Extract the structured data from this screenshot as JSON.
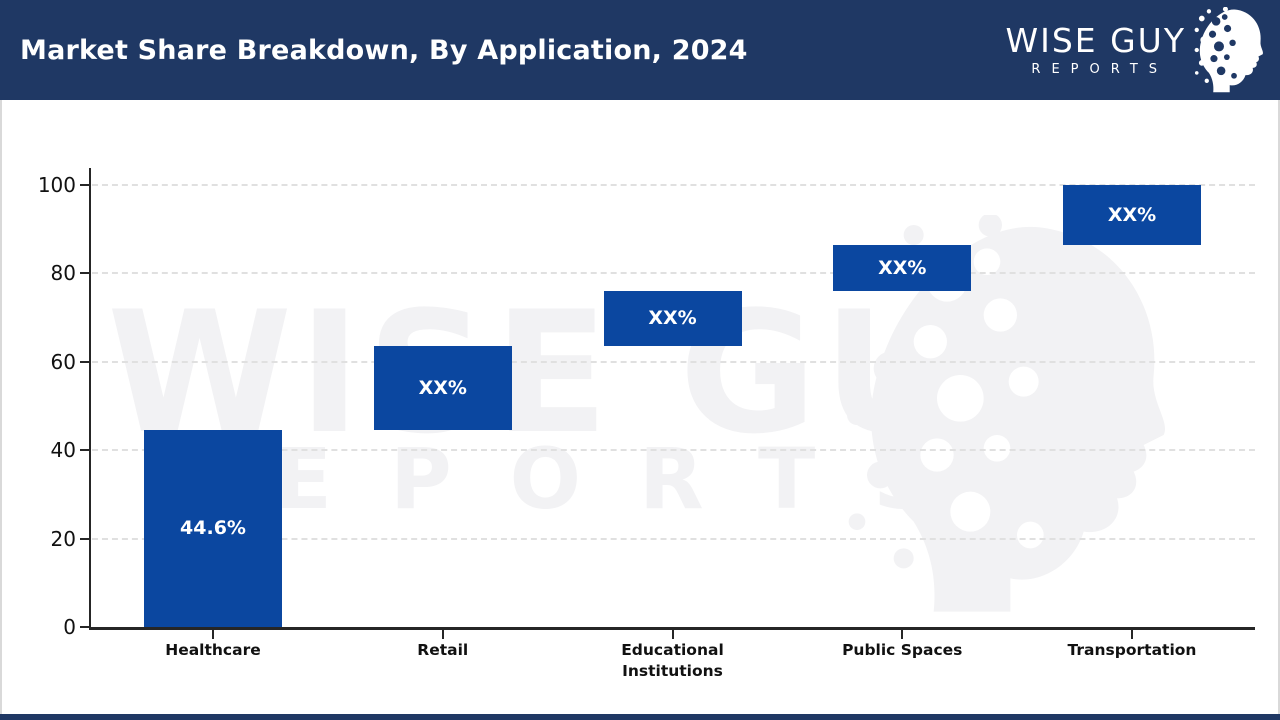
{
  "header": {
    "title": "Market Share Breakdown, By Application, 2024",
    "background_color": "#1f3864",
    "logo": {
      "line1": "WISE GUY",
      "line2": "REPORTS",
      "icon": "dotted-head-profile-icon"
    }
  },
  "watermark": {
    "line1": "WISE GUY",
    "line2": "REPORTS",
    "icon": "dotted-head-profile-icon",
    "color": "#f2f2f4"
  },
  "footer": {
    "bar_color": "#1f3864"
  },
  "chart_data": {
    "type": "bar",
    "subtype": "floating-waterfall",
    "title": "Market Share Breakdown, By Application, 2024",
    "categories": [
      "Healthcare",
      "Retail",
      "Educational\nInstitutions",
      "Public Spaces",
      "Transportation"
    ],
    "series": [
      {
        "name": "Market share (%)",
        "segments": [
          {
            "category": "Healthcare",
            "start": 0,
            "end": 44.6,
            "label": "44.6%"
          },
          {
            "category": "Retail",
            "start": 44.6,
            "end": 63.5,
            "label": "XX%"
          },
          {
            "category": "Educational Institutions",
            "start": 63.5,
            "end": 76.1,
            "label": "XX%"
          },
          {
            "category": "Public Spaces",
            "start": 76.1,
            "end": 86.5,
            "label": "XX%"
          },
          {
            "category": "Transportation",
            "start": 86.5,
            "end": 100,
            "label": "XX%"
          }
        ]
      }
    ],
    "xlabel": "",
    "ylabel": "",
    "ylim": [
      0,
      105
    ],
    "yticks": [
      0,
      20,
      40,
      60,
      80,
      100
    ],
    "grid": "horizontal-dashed",
    "legend_position": "none",
    "bar_color": "#0b47a0",
    "bar_label_color": "#ffffff",
    "axis_color": "#262626",
    "grid_color": "#e0e0e0"
  }
}
